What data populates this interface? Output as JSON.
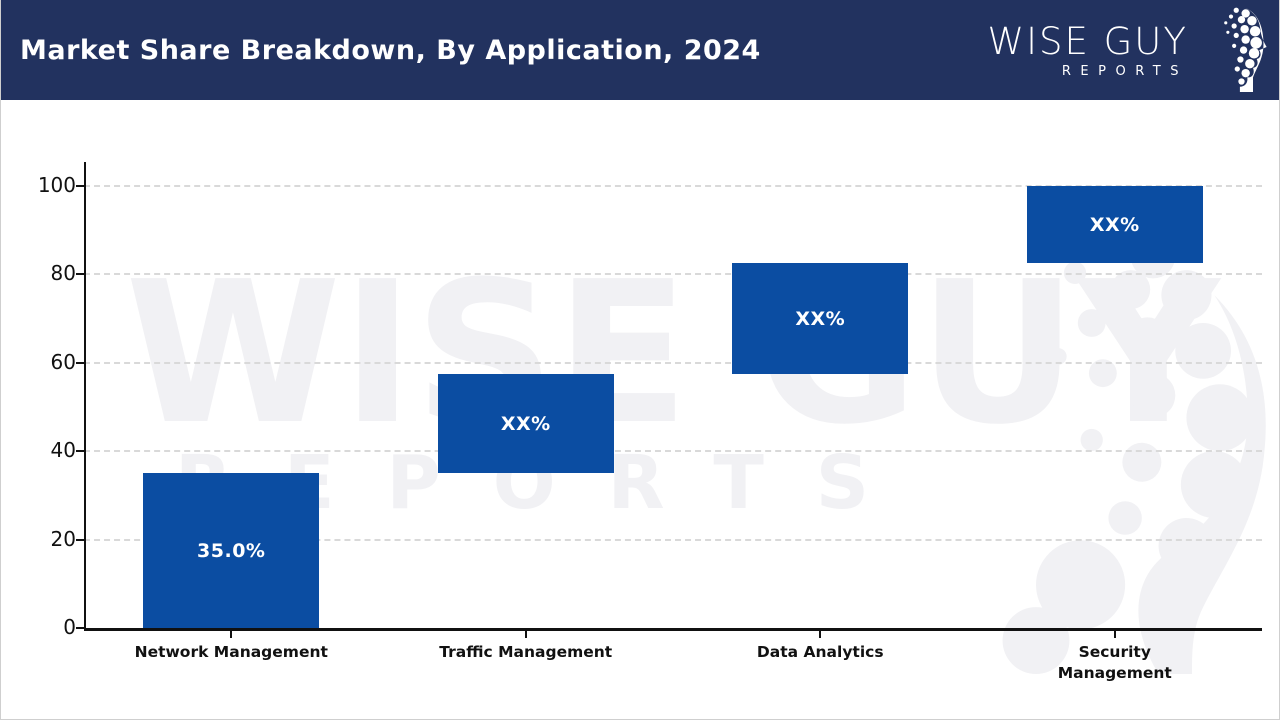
{
  "header": {
    "title": "Market Share Breakdown, By Application, 2024",
    "brand": {
      "line1": "WISE GUY",
      "line2": "REPORTS"
    }
  },
  "watermark": {
    "line1": "WISE GUY",
    "line2": "REPORTS"
  },
  "colors": {
    "header_bg": "#22325F",
    "bar": "#0B4DA2",
    "grid": "#D9D9D9",
    "axis": "#111111",
    "watermark": "#F1F1F4"
  },
  "chart_data": {
    "type": "bar",
    "subtype": "waterfall",
    "title": "Market Share Breakdown, By Application, 2024",
    "categories": [
      "Network Management",
      "Traffic Management",
      "Data Analytics",
      "Security\nManagement"
    ],
    "segments": [
      {
        "category": "Network Management",
        "start": 0,
        "end": 35,
        "label": "35.0%"
      },
      {
        "category": "Traffic Management",
        "start": 35,
        "end": 57.5,
        "label": "XX%"
      },
      {
        "category": "Data Analytics",
        "start": 57.5,
        "end": 82.5,
        "label": "XX%"
      },
      {
        "category": "Security Management",
        "start": 82.5,
        "end": 100,
        "label": "XX%"
      }
    ],
    "ylim": [
      0,
      100
    ],
    "yticks": [
      0,
      20,
      40,
      60,
      80,
      100
    ],
    "grid": "horizontal-dashed",
    "legend": "none",
    "bar_color": "#0B4DA2"
  }
}
